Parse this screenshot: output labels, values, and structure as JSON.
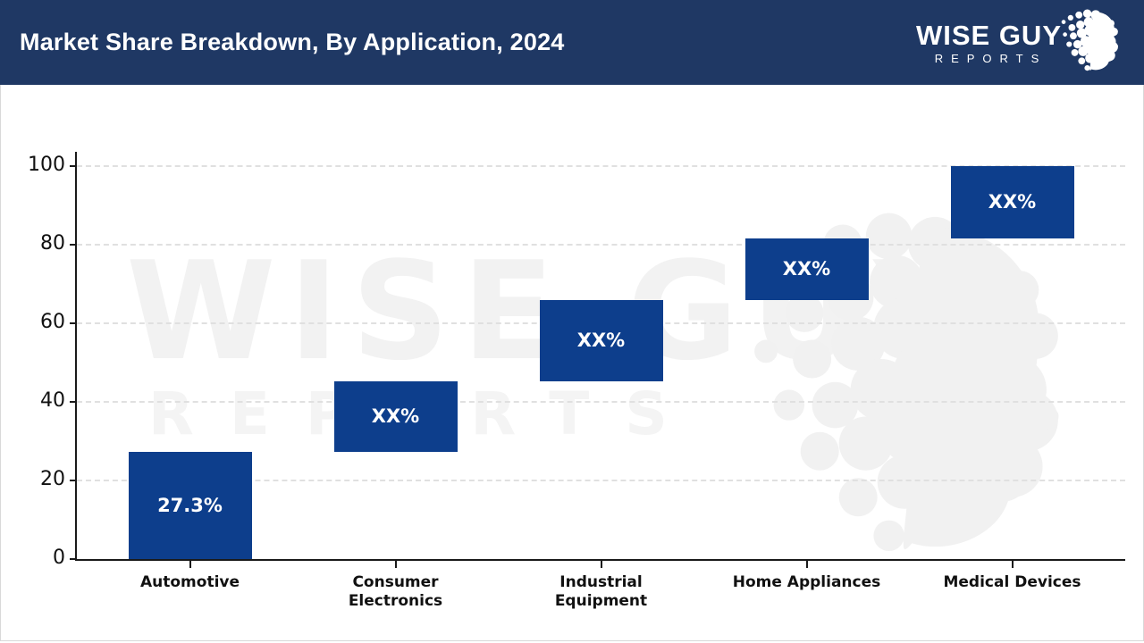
{
  "header": {
    "title": "Market Share Breakdown, By Application, 2024",
    "logo": {
      "line1": "WISE GUY",
      "line2": "REPORTS"
    }
  },
  "watermark": {
    "line1": "WISE GUY",
    "line2": "REPORTS"
  },
  "colors": {
    "header_bg": "#1f3864",
    "bar": "#0d3e8c",
    "bar_label": "#ffffff",
    "grid": "#e0e0e0",
    "axis": "#1a1a1a",
    "watermark": "#f2f2f2",
    "frame": "#d9d9d9"
  },
  "chart_data": {
    "type": "bar",
    "subtype": "waterfall",
    "title": "Market Share Breakdown, By Application, 2024",
    "xlabel": "",
    "ylabel": "",
    "categories": [
      "Automotive",
      "Consumer\nElectronics",
      "Industrial\nEquipment",
      "Home Appliances",
      "Medical Devices"
    ],
    "segments": [
      {
        "category": "Automotive",
        "start": 0,
        "end": 27.3,
        "label": "27.3%"
      },
      {
        "category": "Consumer Electronics",
        "start": 27.3,
        "end": 45.3,
        "label": "XX%"
      },
      {
        "category": "Industrial Equipment",
        "start": 45.3,
        "end": 65.9,
        "label": "XX%"
      },
      {
        "category": "Home Appliances",
        "start": 65.9,
        "end": 81.6,
        "label": "XX%"
      },
      {
        "category": "Medical Devices",
        "start": 81.6,
        "end": 100,
        "label": "XX%"
      }
    ],
    "ylim": [
      0,
      100
    ],
    "yticks": [
      0,
      20,
      40,
      60,
      80,
      100
    ],
    "grid": "horizontal-dashed",
    "legend": "none"
  }
}
